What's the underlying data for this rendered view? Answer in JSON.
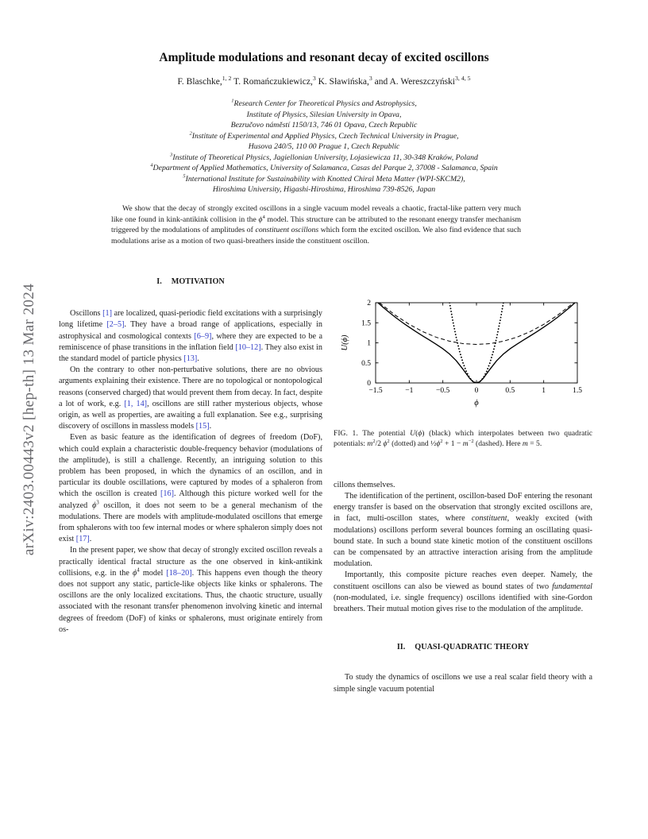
{
  "colors": {
    "citation": "#3340c8",
    "watermark": "#6a6a6e",
    "text": "#1b1b1b"
  },
  "arxiv_watermark": "arXiv:2403.00443v2  [hep-th]  13 Mar 2024",
  "header": {
    "title": "Amplitude modulations and resonant decay of excited oscillons",
    "authors": [
      {
        "t": "F. Blaschke,"
      },
      {
        "t": "1, 2",
        "s": "sup"
      },
      {
        "t": " T. Romańczukiewicz,"
      },
      {
        "t": "3",
        "s": "sup"
      },
      {
        "t": " K. Sławińska,"
      },
      {
        "t": "3",
        "s": "sup"
      },
      {
        "t": " and A. Wereszczyński"
      },
      {
        "t": "3, 4, 5",
        "s": "sup"
      }
    ],
    "affiliations": [
      [
        {
          "t": "1",
          "s": "sup"
        },
        {
          "t": "Research Center for Theoretical Physics and Astrophysics,"
        }
      ],
      [
        {
          "t": "Institute of Physics, Silesian University in Opava,"
        }
      ],
      [
        {
          "t": "Bezručovo náměstí 1150/13, 746 01 Opava, Czech Republic"
        }
      ],
      [
        {
          "t": "2",
          "s": "sup"
        },
        {
          "t": "Institute of Experimental and Applied Physics, Czech Technical University in Prague,"
        }
      ],
      [
        {
          "t": "Husova 240/5, 110 00 Prague 1, Czech Republic"
        }
      ],
      [
        {
          "t": "3",
          "s": "sup"
        },
        {
          "t": "Institute of Theoretical Physics, Jagiellonian University, Lojasiewicza 11, 30-348 Kraków, Poland"
        }
      ],
      [
        {
          "t": "4",
          "s": "sup"
        },
        {
          "t": "Department of Applied Mathematics, University of Salamanca, Casas del Parque 2, 37008 - Salamanca, Spain"
        }
      ],
      [
        {
          "t": "5",
          "s": "sup"
        },
        {
          "t": "International Institute for Sustainability with Knotted Chiral Meta Matter (WPI-SKCM2),"
        }
      ],
      [
        {
          "t": "Hiroshima University, Higashi-Hiroshima, Hiroshima 739-8526, Japan"
        }
      ]
    ]
  },
  "abstract": [
    {
      "t": "We show that the decay of strongly excited oscillons in a single vacuum model reveals a chaotic, fractal-like pattern very much like one found in kink-antikink collision in the "
    },
    {
      "t": "ϕ",
      "s": "i"
    },
    {
      "t": "4",
      "s": "sup"
    },
    {
      "t": " model.  This structure can be attributed to the resonant energy transfer mechanism triggered by the modulations of amplitudes of "
    },
    {
      "t": "constituent oscillons",
      "s": "i"
    },
    {
      "t": " which form the excited oscillon.  We also find evidence that such modulations arise as a motion of two quasi-breathers inside the constituent oscillon."
    }
  ],
  "sections": {
    "motivation": {
      "label": "I.",
      "title": "MOTIVATION"
    },
    "quasi_quadratic": {
      "label": "II.",
      "title": "QUASI-QUADRATIC THEORY"
    }
  },
  "left_column": {
    "paragraphs": [
      [
        {
          "t": "Oscillons "
        },
        {
          "t": "[1]",
          "s": "cite"
        },
        {
          "t": " are localized, quasi-periodic field excitations with a surprisingly long lifetime "
        },
        {
          "t": "[2–5]",
          "s": "cite"
        },
        {
          "t": ".  They have a broad range of applications, especially in astrophysical and cosmological contexts "
        },
        {
          "t": "[6–9]",
          "s": "cite"
        },
        {
          "t": ", where they are expected to be a reminiscence of phase transitions in the inflation field "
        },
        {
          "t": "[10–12]",
          "s": "cite"
        },
        {
          "t": ".  They also exist in the standard model of particle physics "
        },
        {
          "t": "[13]",
          "s": "cite"
        },
        {
          "t": "."
        }
      ],
      [
        {
          "t": "On the contrary to other non-perturbative solutions, there are no obvious arguments explaining their existence.  There are no topological or nontopological reasons (conserved charged) that would prevent them from decay.  In fact, despite a lot of work, e.g. "
        },
        {
          "t": "[1, 14]",
          "s": "cite"
        },
        {
          "t": ", oscillons are still rather mysterious objects, whose origin, as well as properties, are awaiting a full explanation.  See e.g., surprising discovery of oscillons in massless models "
        },
        {
          "t": "[15]",
          "s": "cite"
        },
        {
          "t": "."
        }
      ],
      [
        {
          "t": "Even as basic feature as the identification of degrees of freedom (DoF), which could explain a characteristic double-frequency behavior (modulations of the amplitude), is still a challenge.  Recently, an intriguing solution to this problem has been proposed, in which the dynamics of an oscillon, and in particular its double oscillations, were captured by modes of a sphaleron from which the oscillon is created "
        },
        {
          "t": "[16]",
          "s": "cite"
        },
        {
          "t": ".  Although this picture worked well for the analyzed "
        },
        {
          "t": "ϕ",
          "s": "i"
        },
        {
          "t": "3",
          "s": "sup"
        },
        {
          "t": " oscillon, it does not seem to be a general mechanism of the modulations.  There are models with amplitude-modulated oscillons that emerge from sphalerons with too few internal modes or where sphaleron simply does not exist "
        },
        {
          "t": "[17]",
          "s": "cite"
        },
        {
          "t": "."
        }
      ],
      [
        {
          "t": "In the present paper, we show that decay of strongly excited oscillon reveals a practically identical fractal structure as the one observed in kink-antikink collisions, e.g. in the "
        },
        {
          "t": "ϕ",
          "s": "i"
        },
        {
          "t": "4",
          "s": "sup"
        },
        {
          "t": " model "
        },
        {
          "t": "[18–20]",
          "s": "cite"
        },
        {
          "t": ".  This happens even though the theory does not support any static, particle-like objects like kinks or sphalerons.  The oscillons are the only localized excitations.  Thus, the chaotic structure, usually associated with the resonant transfer phenomenon involving kinetic and internal degrees of freedom (DoF) of kinks or sphalerons, must originate entirely from os-"
        }
      ]
    ]
  },
  "right_column": {
    "paragraphs": [
      [
        {
          "t": "cillons themselves."
        }
      ],
      [
        {
          "t": "The identification of the pertinent, oscillon-based DoF entering the resonant energy transfer is based on the observation that strongly excited oscillons are, in fact, multi-oscillon states, where "
        },
        {
          "t": "constituent",
          "s": "i"
        },
        {
          "t": ", weakly excited (with modulations) oscillons perform several bounces forming an oscillating quasi-bound state.  In such a bound state kinetic motion of the constituent oscillons can be compensated by an attractive interaction arising from the amplitude modulation."
        }
      ],
      [
        {
          "t": "Importantly, this composite picture reaches even deeper.  Namely, the constituent oscillons can also be viewed as bound states of two "
        },
        {
          "t": "fundamental",
          "s": "i"
        },
        {
          "t": " (non-modulated, i.e. single frequency) oscillons identified with sine-Gordon breathers.  Their mutual motion gives rise to the modulation of the amplitude."
        }
      ],
      [
        {
          "t": "To study the dynamics of oscillons we use a real scalar field theory with a simple single vacuum potential"
        }
      ]
    ]
  },
  "figure": {
    "caption": [
      {
        "t": "FIG. 1.  The potential "
      },
      {
        "t": "U",
        "s": "i"
      },
      {
        "t": "("
      },
      {
        "t": "ϕ",
        "s": "i"
      },
      {
        "t": ") (black) which interpolates between two quadratic potentials: "
      },
      {
        "t": "m",
        "s": "i"
      },
      {
        "t": "2",
        "s": "sup"
      },
      {
        "t": "/2 "
      },
      {
        "t": "ϕ",
        "s": "i"
      },
      {
        "t": "2",
        "s": "sup"
      },
      {
        "t": " (dotted) and ½"
      },
      {
        "t": "ϕ",
        "s": "i"
      },
      {
        "t": "2",
        "s": "sup"
      },
      {
        "t": " + 1 − "
      },
      {
        "t": "m",
        "s": "i"
      },
      {
        "t": "−2",
        "s": "sup"
      },
      {
        "t": " (dashed).  Here "
      },
      {
        "t": "m",
        "s": "i"
      },
      {
        "t": " = 5."
      }
    ],
    "chart_data": {
      "type": "line",
      "title": "",
      "xlabel": "ϕ",
      "ylabel": "U(ϕ)",
      "xlim": [
        -1.5,
        1.5
      ],
      "ylim": [
        0,
        2
      ],
      "xticks": [
        -1.5,
        -1,
        -0.5,
        0,
        0.5,
        1,
        1.5
      ],
      "yticks": [
        0,
        0.5,
        1,
        1.5,
        2
      ],
      "grid": false,
      "legend": "none",
      "params": {
        "m": 5
      },
      "series": [
        {
          "name": "U(phi) full potential",
          "style": "solid",
          "x": [
            -1.5,
            -1.4,
            -1.3,
            -1.2,
            -1.1,
            -1.0,
            -0.9,
            -0.8,
            -0.7,
            -0.6,
            -0.5,
            -0.4,
            -0.3,
            -0.2,
            -0.1,
            -0.05,
            0,
            0.05,
            0.1,
            0.2,
            0.3,
            0.4,
            0.5,
            0.6,
            0.7,
            0.8,
            0.9,
            1.0,
            1.1,
            1.2,
            1.3,
            1.4,
            1.5
          ],
          "y": [
            2.052,
            1.902,
            1.762,
            1.629,
            1.505,
            1.389,
            1.279,
            1.173,
            1.07,
            0.965,
            0.852,
            0.72,
            0.553,
            0.34,
            0.112,
            0.03,
            0,
            0.03,
            0.112,
            0.34,
            0.553,
            0.72,
            0.852,
            0.965,
            1.07,
            1.173,
            1.279,
            1.389,
            1.505,
            1.629,
            1.762,
            1.902,
            2.052
          ]
        },
        {
          "name": "m^2/2 phi^2",
          "style": "dotted",
          "x": [
            -0.4,
            -0.35,
            -0.3,
            -0.25,
            -0.2,
            -0.15,
            -0.1,
            -0.05,
            0,
            0.05,
            0.1,
            0.15,
            0.2,
            0.25,
            0.3,
            0.35,
            0.4
          ],
          "y": [
            2.0,
            1.531,
            1.125,
            0.781,
            0.5,
            0.281,
            0.125,
            0.031,
            0,
            0.031,
            0.125,
            0.281,
            0.5,
            0.781,
            1.125,
            1.531,
            2.0
          ]
        },
        {
          "name": "phi^2/2 + 1 - m^-2",
          "style": "dashed",
          "x": [
            -1.442,
            -1.4,
            -1.2,
            -1.0,
            -0.8,
            -0.6,
            -0.4,
            -0.2,
            0,
            0.2,
            0.4,
            0.6,
            0.8,
            1.0,
            1.2,
            1.4,
            1.442
          ],
          "y": [
            2.0,
            1.94,
            1.68,
            1.46,
            1.28,
            1.14,
            1.04,
            0.98,
            0.96,
            0.98,
            1.04,
            1.14,
            1.28,
            1.46,
            1.68,
            1.94,
            2.0
          ]
        }
      ]
    }
  }
}
